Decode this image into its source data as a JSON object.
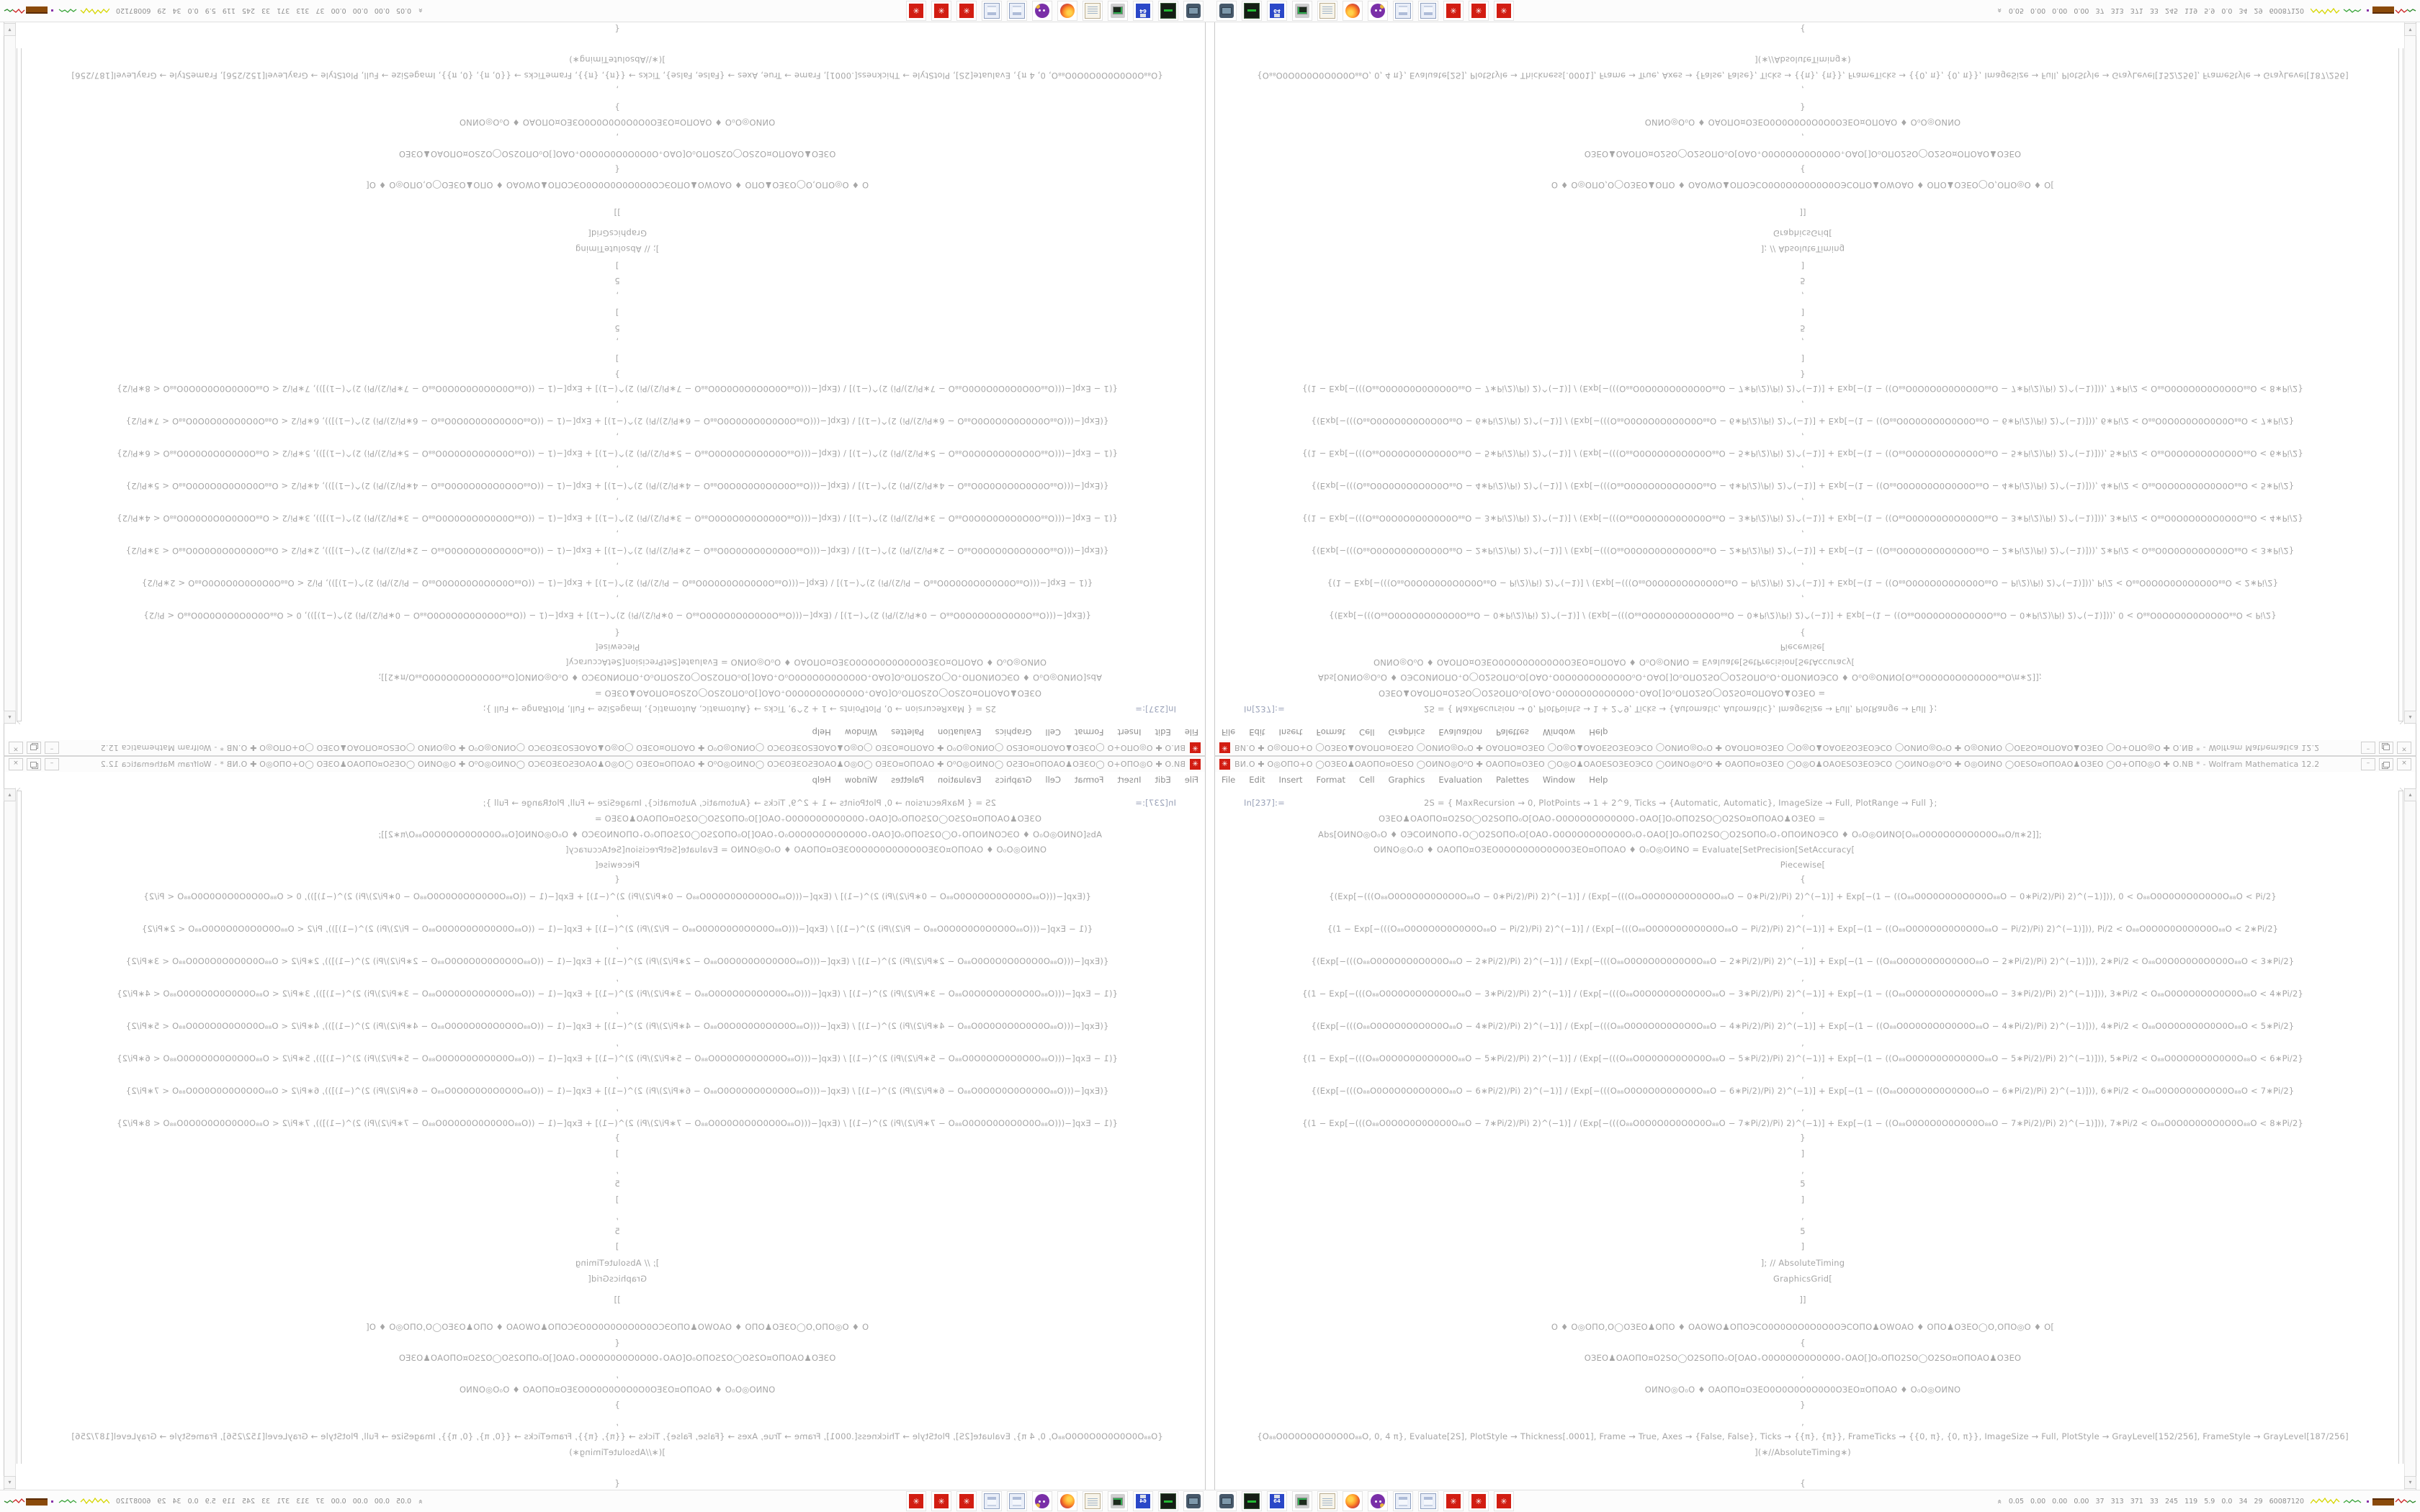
{
  "window": {
    "icon_glyph": "✳",
    "title_gibberish": "ВИ.О ✚ О◎ОПО+О ◯ОЗЕО♟ОАОПО¤ОЕЅО ◯ОИNО◎О⁰О ✚ ОАОПО¤ОЗЕО ◯О◎О♟ОАОЕЅОЗЕОЭСО ◯ОИNО◎О⁰О ✚ ОАОПО¤ОЗЕО ◯О◎О♟ОАОЕЅОЗЕОЭСО ◯ОИNО◎О⁰О ✚ О◎ОИNО ◯ОЕЅО¤ОПОАО♟ОЗЕО ◯О+ОПО◎О ✚ О",
    "title_readable": ".NB * - Wolfram Mathematica 12.2",
    "minimize_glyph": "–",
    "close_glyph": "×",
    "scroll_up_glyph": "▴",
    "scroll_down_glyph": "▾"
  },
  "menu": {
    "items": [
      "File",
      "Edit",
      "Insert",
      "Format",
      "Cell",
      "Graphics",
      "Evaluation",
      "Palettes",
      "Window",
      "Help"
    ]
  },
  "notebook": {
    "lines": [
      "In[237]:=",
      "2Ѕ = {   MaxRecursion → 0, PlotPoints → 1 + 2^9, Ticks → {Automatic, Automatic}, ImageSize → Full, PlotRange → Full   };",
      "ОЗЕО♟ОАОПО¤О2ЅО◯О2ЅОПО₀О[ОАО₊О0О0О0О0О0О0О₊ОАО[]О₀ОПО2ЅО◯О2ЅО¤ОПОАО♟ОЗЕО   =",
      "Abs[ОИNО◎О₀О ♦ ОЭСОИNОПО₊О◯О2ЅОПО₀О[ОАО₊О0О0О0О0О0О0О₀О₊ОАО[]О₀ОПО2ЅО◯О2ЅОПО₀О₊ОПОИNОЭСО ♦ О₀О◎ОИNО[О₈₈О0О0О0О0О0О0О₈₈О/π∗2]];",
      "ОИNО◎О₀О ♦ ОАОПО¤ОЗЕО0О0О0О0О0О0ОЗЕО¤ОПОАО ♦ О₀О◎ОИNО = Evaluate[SetPrecision[SetAccuracy[",
      "Piecewise[",
      "{",
      "{(Exp[−(((О₈₈О0О0О0О0О0О0О₈₈О − 0∗Pi/2)/Pi) 2)^(−1)] / (Exp[−(((О₈₈О0О0О0О0О0О0О₈₈О − 0∗Pi/2)/Pi) 2)^(−1)] + Exp[−(1 − ((О₈₈О0О0О0О0О0О0О₈₈О − 0∗Pi/2)/Pi) 2)^(−1)])), 0 < О₈₈О0О0О0О0О0О0О₈₈О < Pi/2}",
      ",",
      "{(1 − Exp[−(((О₈₈О0О0О0О0О0О0О₈₈О − Pi/2)/Pi) 2)^(−1)] / (Exp[−(((О₈₈О0О0О0О0О0О0О₈₈О − Pi/2)/Pi) 2)^(−1)] + Exp[−(1 − ((О₈₈О0О0О0О0О0О0О₈₈О − Pi/2)/Pi) 2)^(−1)])), Pi/2 < О₈₈О0О0О0О0О0О0О₈₈О < 2∗Pi/2}",
      ",",
      "{(Exp[−(((О₈₈О0О0О0О0О0О0О₈₈О − 2∗Pi/2)/Pi) 2)^(−1)] / (Exp[−(((О₈₈О0О0О0О0О0О0О₈₈О − 2∗Pi/2)/Pi) 2)^(−1)] + Exp[−(1 − ((О₈₈О0О0О0О0О0О0О₈₈О − 2∗Pi/2)/Pi) 2)^(−1)])), 2∗Pi/2 < О₈₈О0О0О0О0О0О0О₈₈О < 3∗Pi/2}",
      ",",
      "{(1 − Exp[−(((О₈₈О0О0О0О0О0О0О₈₈О − 3∗Pi/2)/Pi) 2)^(−1)] / (Exp[−(((О₈₈О0О0О0О0О0О0О₈₈О − 3∗Pi/2)/Pi) 2)^(−1)] + Exp[−(1 − ((О₈₈О0О0О0О0О0О0О₈₈О − 3∗Pi/2)/Pi) 2)^(−1)])), 3∗Pi/2 < О₈₈О0О0О0О0О0О0О₈₈О < 4∗Pi/2}",
      ",",
      "{(Exp[−(((О₈₈О0О0О0О0О0О0О₈₈О − 4∗Pi/2)/Pi) 2)^(−1)] / (Exp[−(((О₈₈О0О0О0О0О0О0О₈₈О − 4∗Pi/2)/Pi) 2)^(−1)] + Exp[−(1 − ((О₈₈О0О0О0О0О0О0О₈₈О − 4∗Pi/2)/Pi) 2)^(−1)])), 4∗Pi/2 < О₈₈О0О0О0О0О0О0О₈₈О < 5∗Pi/2}",
      ",",
      "{(1 − Exp[−(((О₈₈О0О0О0О0О0О0О₈₈О − 5∗Pi/2)/Pi) 2)^(−1)] / (Exp[−(((О₈₈О0О0О0О0О0О0О₈₈О − 5∗Pi/2)/Pi) 2)^(−1)] + Exp[−(1 − ((О₈₈О0О0О0О0О0О0О₈₈О − 5∗Pi/2)/Pi) 2)^(−1)])), 5∗Pi/2 < О₈₈О0О0О0О0О0О0О₈₈О < 6∗Pi/2}",
      ",",
      "{(Exp[−(((О₈₈О0О0О0О0О0О0О₈₈О − 6∗Pi/2)/Pi) 2)^(−1)] / (Exp[−(((О₈₈О0О0О0О0О0О0О₈₈О − 6∗Pi/2)/Pi) 2)^(−1)] + Exp[−(1 − ((О₈₈О0О0О0О0О0О0О₈₈О − 6∗Pi/2)/Pi) 2)^(−1)])), 6∗Pi/2 < О₈₈О0О0О0О0О0О0О₈₈О < 7∗Pi/2}",
      ",",
      "{(1 − Exp[−(((О₈₈О0О0О0О0О0О0О₈₈О − 7∗Pi/2)/Pi) 2)^(−1)] / (Exp[−(((О₈₈О0О0О0О0О0О0О₈₈О − 7∗Pi/2)/Pi) 2)^(−1)] + Exp[−(1 − ((О₈₈О0О0О0О0О0О0О₈₈О − 7∗Pi/2)/Pi) 2)^(−1)])), 7∗Pi/2 < О₈₈О0О0О0О0О0О0О₈₈О < 8∗Pi/2}",
      "}",
      "]",
      ",",
      "5",
      "]",
      ",",
      "5",
      "]",
      "]; // AbsoluteTiming",
      "GraphicsGrid[",
      "]]",
      "О ♦ О◎ОПО,О◯ОЗЕО♟ОПО ♦ ОАОWО♟ОПОЭСО0О0О0О0О0О0ОЭСОПО♟ОWОАО ♦ ОПО♟ОЗЕО◯О,ОПО◎О ♦ О[",
      "{",
      "ОЗЕО♟ОАОПО¤О2ЅО◯О2ЅОПО₀О[ОАО₊О0О0О0О0О0О0О₊ОАО[]О₀ОПО2ЅО◯О2ЅО¤ОПОАО♟ОЗЕО",
      ",",
      "ОИNО◎О₀О ♦ ОАОПО¤ОЗЕО0О0О0О0О0О0ОЗЕО¤ОПОАО ♦ О₀О◎ОИNО",
      "}",
      ",",
      "{О₈₈О0О0О0О0О0О0О₈₈О, 0, 4 π}, Evaluate[2Ѕ], PlotStyle → Thickness[.0001], Frame → True, Axes → {False, False}, Ticks → {{π}, {π}}, FrameTicks → {{0, π}, {0, π}}, ImageSize → Full, PlotStyle → GrayLevel[152/256], FrameStyle → GrayLevel[187/256]",
      "](∗//AbsoluteTiming∗)",
      "{"
    ]
  },
  "taskbar": {
    "launchers": [
      {
        "name": "display-settings",
        "type": "mdark",
        "label": ""
      },
      {
        "name": "disk-utility",
        "type": "drive",
        "label": ""
      },
      {
        "name": "floppy64-emulator",
        "type": "floppy",
        "label": "64"
      },
      {
        "name": "retro-terminal",
        "type": "retro",
        "label": ""
      },
      {
        "name": "notepad",
        "type": "notepad",
        "label": ""
      },
      {
        "name": "firefox-browser",
        "type": "firefox",
        "label": ""
      },
      {
        "name": "messaging-app",
        "type": "chat",
        "label": ""
      },
      {
        "name": "calculator",
        "type": "calc",
        "label": ""
      },
      {
        "name": "calculator-alt",
        "type": "calc",
        "label": ""
      },
      {
        "name": "mathematica-kernel-1",
        "type": "mma",
        "label": "✳"
      },
      {
        "name": "mathematica-kernel-2",
        "type": "mma",
        "label": "✳"
      },
      {
        "name": "mathematica-kernel-3",
        "type": "mma",
        "label": "✳"
      }
    ],
    "monitor": {
      "chevron": "«",
      "values": [
        "0.05",
        "0.00",
        "0.00",
        "0.00",
        "37",
        "313",
        "371",
        "33",
        "245",
        "119",
        "5.9",
        "0.0",
        "34",
        "29",
        "60087120"
      ],
      "colors": {
        "cpu": "#d6d600",
        "mem": "#3aa53a",
        "disk": "#8a4a0a",
        "net_red": "#cc2222",
        "net_green": "#2a8a2a",
        "dot": "#8833aa"
      }
    }
  }
}
